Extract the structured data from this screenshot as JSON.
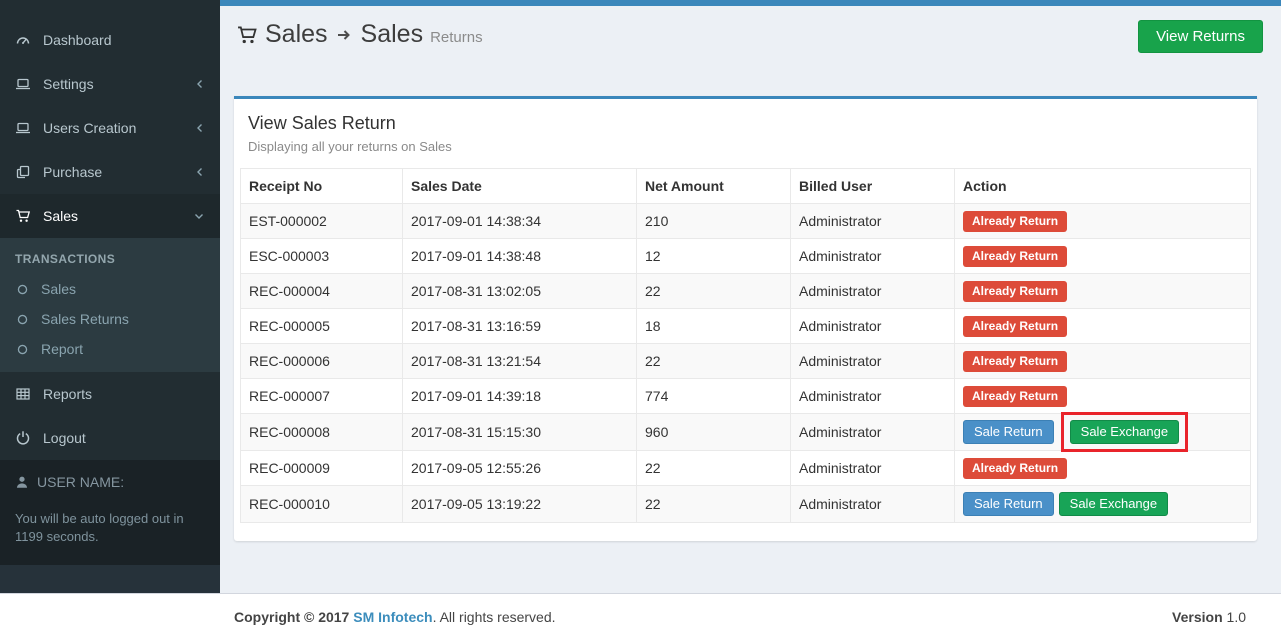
{
  "sidebar": {
    "items": [
      {
        "label": "Dashboard",
        "icon": "dashboard-icon"
      },
      {
        "label": "Settings",
        "icon": "laptop-icon",
        "chevron": "left"
      },
      {
        "label": "Users Creation",
        "icon": "laptop-icon",
        "chevron": "left"
      },
      {
        "label": "Purchase",
        "icon": "copy-icon",
        "chevron": "left"
      },
      {
        "label": "Sales",
        "icon": "cart-icon",
        "chevron": "down",
        "active": true
      }
    ],
    "submenu_header": "TRANSACTIONS",
    "submenu": [
      {
        "label": "Sales",
        "icon": "circle-icon"
      },
      {
        "label": "Sales Returns",
        "icon": "circle-icon"
      },
      {
        "label": "Report",
        "icon": "circle-icon"
      }
    ],
    "items_bottom": [
      {
        "label": "Reports",
        "icon": "table-icon"
      },
      {
        "label": "Logout",
        "icon": "power-icon"
      }
    ],
    "user_label": "USER NAME:",
    "user_icon": "user-icon",
    "logout_notice": "You will be auto logged out in 1199 seconds."
  },
  "header": {
    "breadcrumb_primary": "Sales",
    "breadcrumb_secondary": "Sales",
    "breadcrumb_suffix": "Returns",
    "view_returns_label": "View Returns"
  },
  "panel": {
    "title": "View Sales Return",
    "subtitle": "Displaying all your returns on Sales"
  },
  "table": {
    "headers": [
      "Receipt No",
      "Sales Date",
      "Net Amount",
      "Billed User",
      "Action"
    ],
    "rows": [
      {
        "receipt": "EST-000002",
        "date": "2017-09-01 14:38:34",
        "amount": "210",
        "user": "Administrator",
        "actions": [
          {
            "kind": "already",
            "label": "Already Return"
          }
        ]
      },
      {
        "receipt": "ESC-000003",
        "date": "2017-09-01 14:38:48",
        "amount": "12",
        "user": "Administrator",
        "actions": [
          {
            "kind": "already",
            "label": "Already Return"
          }
        ]
      },
      {
        "receipt": "REC-000004",
        "date": "2017-08-31 13:02:05",
        "amount": "22",
        "user": "Administrator",
        "actions": [
          {
            "kind": "already",
            "label": "Already Return"
          }
        ]
      },
      {
        "receipt": "REC-000005",
        "date": "2017-08-31 13:16:59",
        "amount": "18",
        "user": "Administrator",
        "actions": [
          {
            "kind": "already",
            "label": "Already Return"
          }
        ]
      },
      {
        "receipt": "REC-000006",
        "date": "2017-08-31 13:21:54",
        "amount": "22",
        "user": "Administrator",
        "actions": [
          {
            "kind": "already",
            "label": "Already Return"
          }
        ]
      },
      {
        "receipt": "REC-000007",
        "date": "2017-09-01 14:39:18",
        "amount": "774",
        "user": "Administrator",
        "actions": [
          {
            "kind": "already",
            "label": "Already Return"
          }
        ]
      },
      {
        "receipt": "REC-000008",
        "date": "2017-08-31 15:15:30",
        "amount": "960",
        "user": "Administrator",
        "actions": [
          {
            "kind": "return",
            "label": "Sale Return"
          },
          {
            "kind": "exchange",
            "label": "Sale Exchange",
            "highlighted": true
          }
        ]
      },
      {
        "receipt": "REC-000009",
        "date": "2017-09-05 12:55:26",
        "amount": "22",
        "user": "Administrator",
        "actions": [
          {
            "kind": "already",
            "label": "Already Return"
          }
        ]
      },
      {
        "receipt": "REC-000010",
        "date": "2017-09-05 13:19:22",
        "amount": "22",
        "user": "Administrator",
        "actions": [
          {
            "kind": "return",
            "label": "Sale Return"
          },
          {
            "kind": "exchange",
            "label": "Sale Exchange"
          }
        ]
      }
    ]
  },
  "footer": {
    "copyright_prefix": "Copyright © 2017",
    "company": "SM Infotech",
    "copyright_suffix": ". All rights reserved.",
    "version_label": "Version",
    "version_value": "1.0"
  },
  "colors": {
    "accent_blue": "#3b87bb",
    "button_green": "#18a34b",
    "button_blue": "#4a90c8",
    "badge_red": "#dd4b39",
    "annotation_red": "#e9242b",
    "sidebar_bg": "#222d32"
  }
}
